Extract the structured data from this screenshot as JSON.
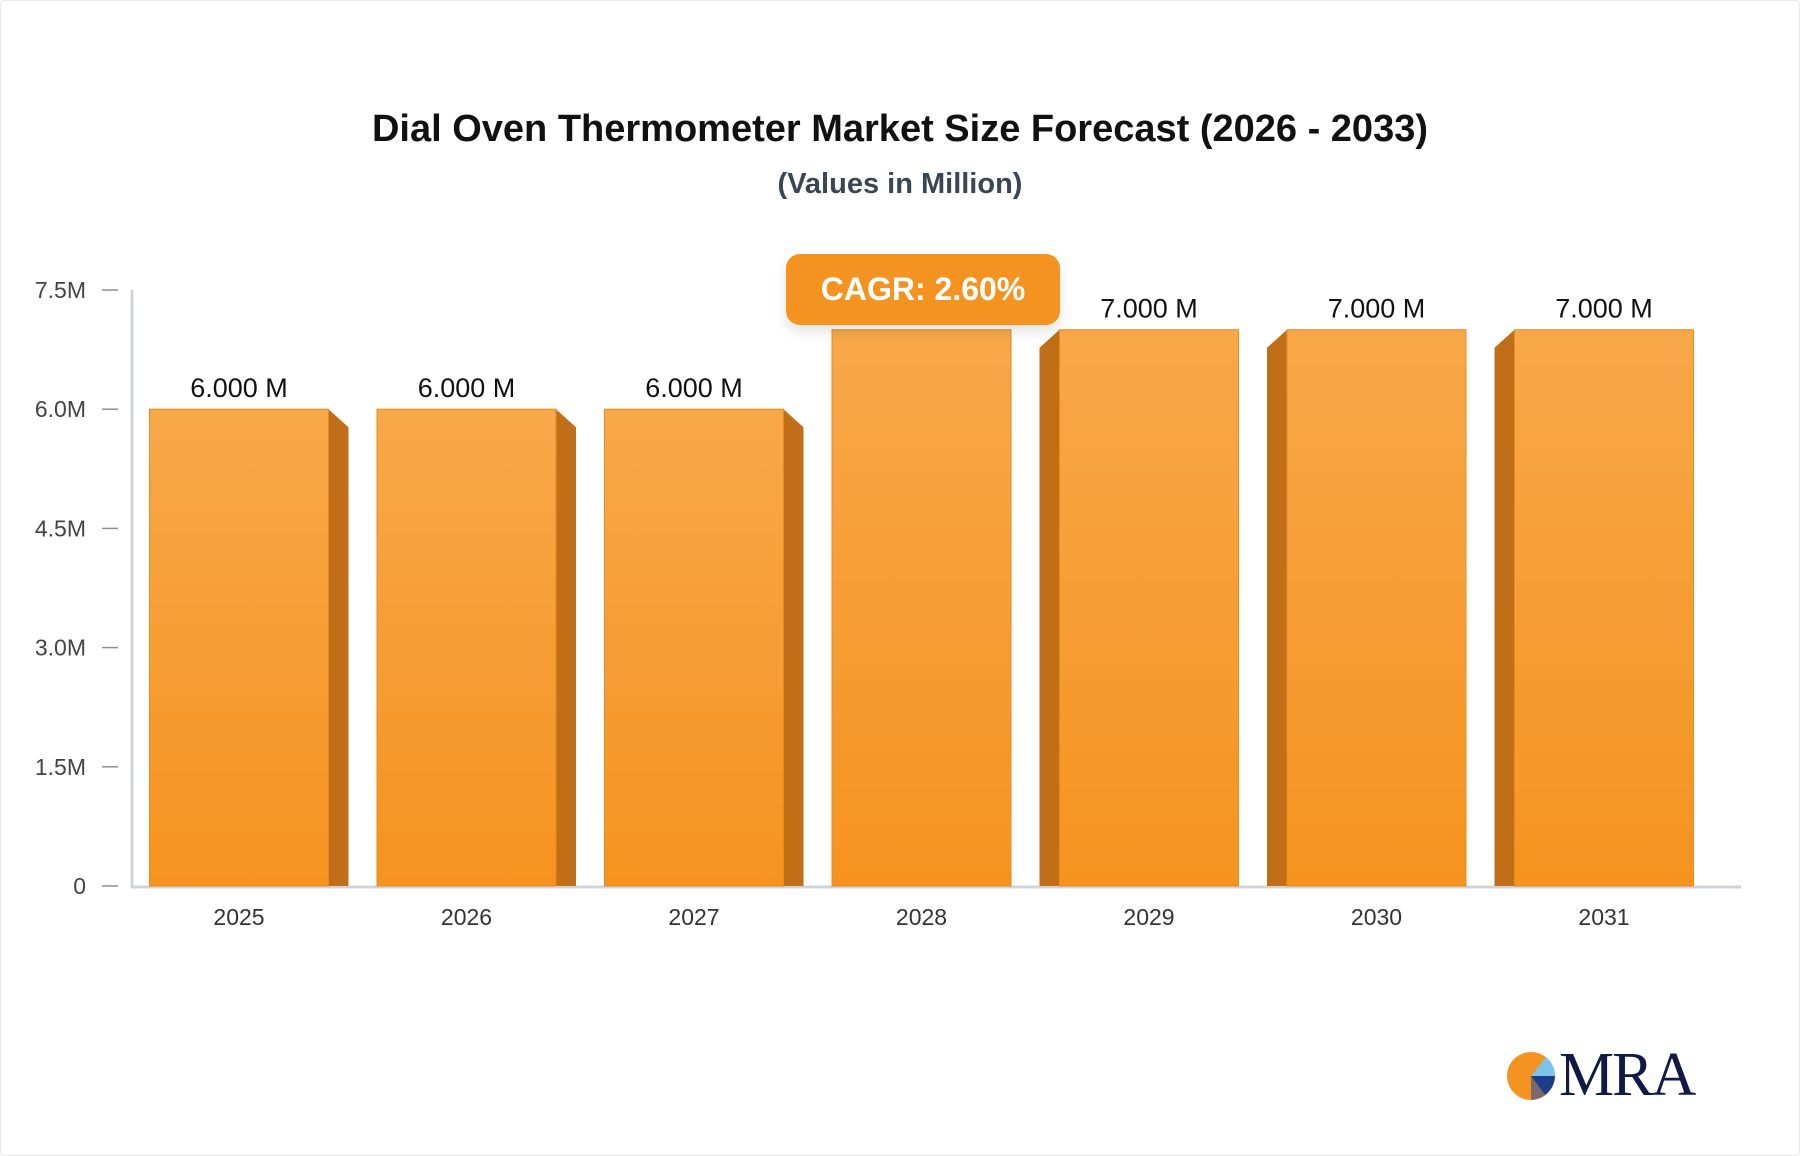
{
  "title": "Dial Oven Thermometer Market Size Forecast (2026 - 2033)",
  "subtitle": "(Values in Million)",
  "cagr_label": "CAGR: 2.60%",
  "logo_text": "MRA",
  "colors": {
    "bar": "#f7a13f",
    "bar_side": "#c06f18",
    "accent": "#f59320",
    "axis": "#d0d3da"
  },
  "chart_data": {
    "type": "bar",
    "categories": [
      "2025",
      "2026",
      "2027",
      "2028",
      "2029",
      "2030",
      "2031"
    ],
    "values": [
      6.0,
      6.0,
      6.0,
      7.0,
      7.0,
      7.0,
      7.0
    ],
    "data_labels": [
      "6.000 M",
      "6.000 M",
      "6.000 M",
      "",
      "7.000 M",
      "7.000 M",
      "7.000 M"
    ],
    "yticks": [
      0,
      1.5,
      3.0,
      4.5,
      6.0,
      7.5
    ],
    "ytick_labels": [
      "0",
      "1.5M",
      "3.0M",
      "4.5M",
      "6.0M",
      "7.5M"
    ],
    "ylim": [
      0,
      7.5
    ],
    "xlabel": "",
    "ylabel": "",
    "grid": false
  }
}
